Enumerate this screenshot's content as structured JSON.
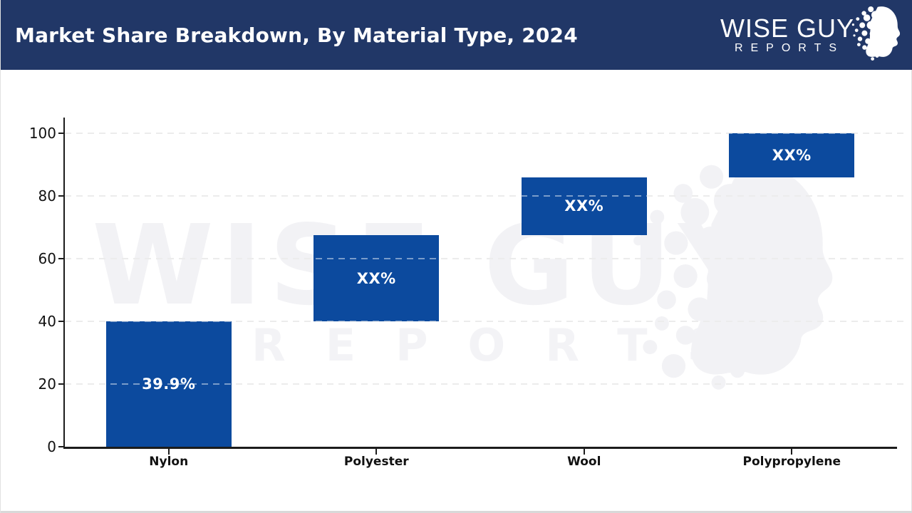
{
  "header": {
    "title": "Market Share Breakdown, By Material Type, 2024",
    "bg_color": "#213767",
    "logo": {
      "line1": "WISE GUY",
      "line2": "REPORTS"
    }
  },
  "watermark": {
    "line1": "WISE GUY",
    "line2": "REPORTS",
    "head_icon": "dotted-head-profile"
  },
  "colors": {
    "bar": "#0c4a9e",
    "header_navy": "#213767",
    "gridline": "#dcdcdc",
    "axis": "#1c1c1c",
    "watermark_gray": "#f2f2f5",
    "bar_label_text": "#ffffff"
  },
  "chart_data": {
    "type": "bar",
    "subtype": "waterfall",
    "title": "Market Share Breakdown, By Material Type, 2024",
    "categories": [
      "Nylon",
      "Polyester",
      "Wool",
      "Polypropylene"
    ],
    "segments": [
      {
        "category": "Nylon",
        "start": 0,
        "end": 39.9,
        "label": "39.9%"
      },
      {
        "category": "Polyester",
        "start": 39.9,
        "end": 67.5,
        "label": "XX%"
      },
      {
        "category": "Wool",
        "start": 67.5,
        "end": 86.0,
        "label": "XX%"
      },
      {
        "category": "Polypropylene",
        "start": 86.0,
        "end": 100.0,
        "label": "XX%"
      }
    ],
    "values": [
      39.9,
      27.6,
      18.5,
      14.0
    ],
    "cumulative": [
      39.9,
      67.5,
      86.0,
      100.0
    ],
    "yticks": [
      0,
      20,
      40,
      60,
      80,
      100
    ],
    "ylim": [
      0,
      105
    ],
    "xlabel": "",
    "ylabel": "",
    "grid": true,
    "grid_style": "dashed",
    "legend": "none",
    "bar_color": "#0c4a9e"
  }
}
